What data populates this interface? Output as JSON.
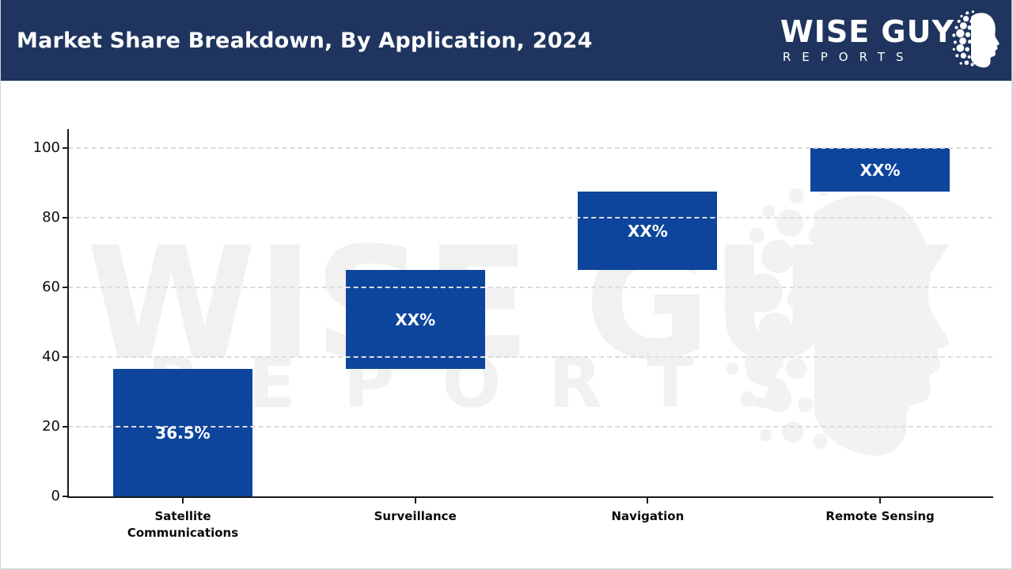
{
  "header": {
    "title": "Market Share Breakdown, By Application, 2024",
    "logo": {
      "wordmark": "WISE GUY",
      "subtext": "REPORTS"
    },
    "bg_color": "#1f355f"
  },
  "watermark": {
    "wordmark": "WISE GUY",
    "subtext": "REPORTS"
  },
  "chart_data": {
    "type": "bar",
    "subtype": "waterfall",
    "title": "Market Share Breakdown, By Application, 2024",
    "categories": [
      "Satellite Communications",
      "Surveillance",
      "Navigation",
      "Remote Sensing"
    ],
    "segments": [
      {
        "category": "Satellite Communications",
        "start": 0,
        "end": 36.5,
        "label": "36.5%"
      },
      {
        "category": "Surveillance",
        "start": 36.5,
        "end": 65,
        "label": "XX%"
      },
      {
        "category": "Navigation",
        "start": 65,
        "end": 87.5,
        "label": "XX%"
      },
      {
        "category": "Remote Sensing",
        "start": 87.5,
        "end": 100,
        "label": "XX%"
      }
    ],
    "xlabel": "",
    "ylabel": "",
    "ylim": [
      0,
      100
    ],
    "yticks": [
      0,
      20,
      40,
      60,
      80,
      100
    ],
    "grid": "horizontal-dashed",
    "legend": "none",
    "bar_color": "#0c459b",
    "bar_label_color": "#ffffff"
  }
}
